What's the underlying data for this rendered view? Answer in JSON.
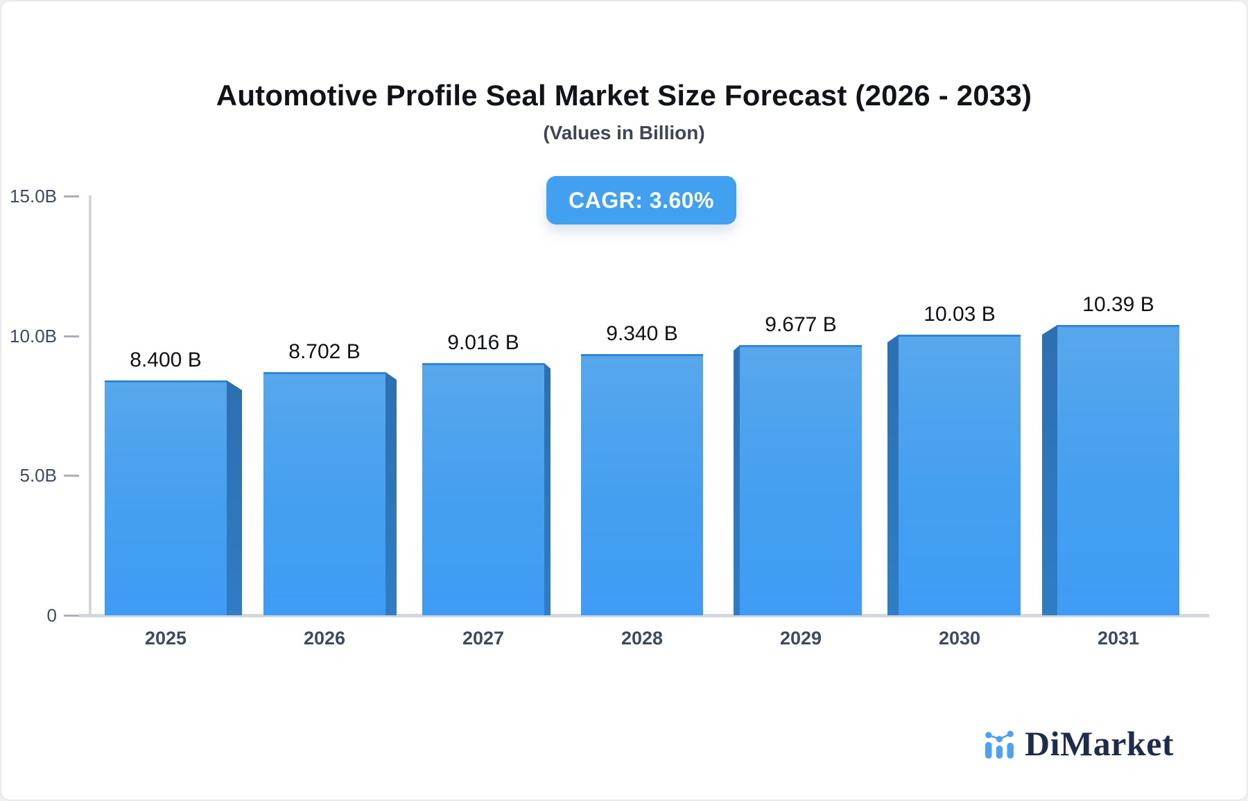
{
  "header": {
    "title": "Automotive Profile Seal Market Size Forecast (2026 - 2033)",
    "subtitle": "(Values in Billion)",
    "cagr_label": "CAGR: 3.60%"
  },
  "chart_data": {
    "type": "bar",
    "title": "Automotive Profile Seal Market Size Forecast (2026 - 2033)",
    "subtitle": "(Values in Billion)",
    "categories": [
      "2025",
      "2026",
      "2027",
      "2028",
      "2029",
      "2030",
      "2031"
    ],
    "values": [
      8.4,
      8.702,
      9.016,
      9.34,
      9.677,
      10.03,
      10.39
    ],
    "value_labels": [
      "8.400 B",
      "8.702 B",
      "9.016 B",
      "9.340 B",
      "9.677 B",
      "10.03 B",
      "10.39 B"
    ],
    "cagr": "3.60%",
    "xlabel": "",
    "ylabel": "",
    "ylim": [
      0,
      15
    ],
    "y_ticks": [
      {
        "label": "0",
        "value": 0
      },
      {
        "label": "5.0B",
        "value": 5
      },
      {
        "label": "10.0B",
        "value": 10
      },
      {
        "label": "15.0B",
        "value": 15
      }
    ],
    "grid": false,
    "legend": "none",
    "style_3d": true
  },
  "colors": {
    "bar_top": "#57a7ec",
    "bar_bottom": "#3f9cf4",
    "bar_side": "#2d76b8",
    "badge_bg": "#41a0ef",
    "badge_text": "#ffffff",
    "axis_line": "#d3d7dc",
    "tick": "#a9b0ba",
    "label_text": "#3d4a63",
    "value_text": "#0e1116",
    "title_text": "#101418",
    "logo_blue": "#4ba1f2",
    "logo_navy": "#1d2c4e"
  },
  "branding": {
    "logo_text": "DiMarket"
  }
}
